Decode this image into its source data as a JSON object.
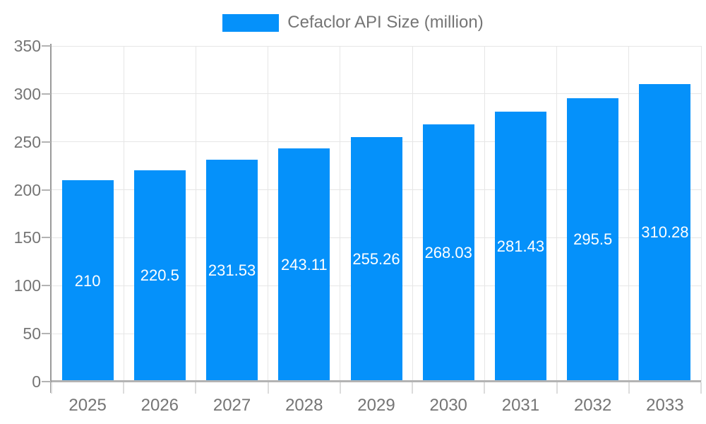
{
  "legend": {
    "label": "Cefaclor API Size (million)"
  },
  "colors": {
    "background": "#ffffff",
    "bar": "#0591fa",
    "bar_label": "#ffffff",
    "grid": "#e6e6e6",
    "axis": "#9a9a9a",
    "baseline": "#b3b3b3",
    "category_tick": "#dcdcdc",
    "text": "#757575"
  },
  "chart_data": {
    "type": "bar",
    "title": "Cefaclor API Size (million)",
    "categories": [
      "2025",
      "2026",
      "2027",
      "2028",
      "2029",
      "2030",
      "2031",
      "2032",
      "2033"
    ],
    "values": [
      210,
      220.5,
      231.53,
      243.11,
      255.26,
      268.03,
      281.43,
      295.5,
      310.28
    ],
    "series": [
      {
        "name": "Cefaclor API Size (million)",
        "values": [
          210,
          220.5,
          231.53,
          243.11,
          255.26,
          268.03,
          281.43,
          295.5,
          310.28
        ]
      }
    ],
    "xlabel": "",
    "ylabel": "",
    "ylim": [
      0,
      350
    ],
    "ytick_step": 50,
    "ytick_labels": [
      "0",
      "50",
      "100",
      "150",
      "200",
      "250",
      "300",
      "350"
    ],
    "grid": true,
    "legend_position": "top",
    "bar_value_labels": "centered-inside-white"
  }
}
